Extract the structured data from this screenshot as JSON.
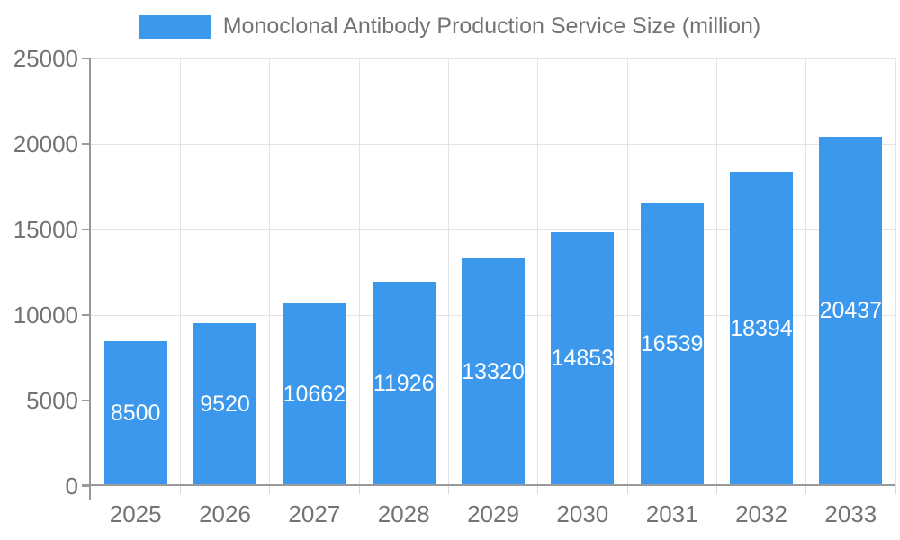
{
  "chart_data": {
    "type": "bar",
    "title": "Monoclonal Antibody Production Service Size (million)",
    "categories": [
      "2025",
      "2026",
      "2027",
      "2028",
      "2029",
      "2030",
      "2031",
      "2032",
      "2033"
    ],
    "values": [
      8500,
      9520,
      10662,
      11926,
      13320,
      14853,
      16539,
      18394,
      20437
    ],
    "xlabel": "",
    "ylabel": "",
    "ylim": [
      0,
      25000
    ],
    "yticks": [
      0,
      5000,
      10000,
      15000,
      20000,
      25000
    ],
    "grid": true,
    "legend_position": "top-center",
    "value_label_position": "inside-center",
    "colors": {
      "bar": "#3b98ec",
      "grid_line": "#e3e3e3",
      "axis_line": "#999999",
      "tick_text": "#737373",
      "value_label_text": "#ffffff",
      "background": "#ffffff"
    }
  }
}
